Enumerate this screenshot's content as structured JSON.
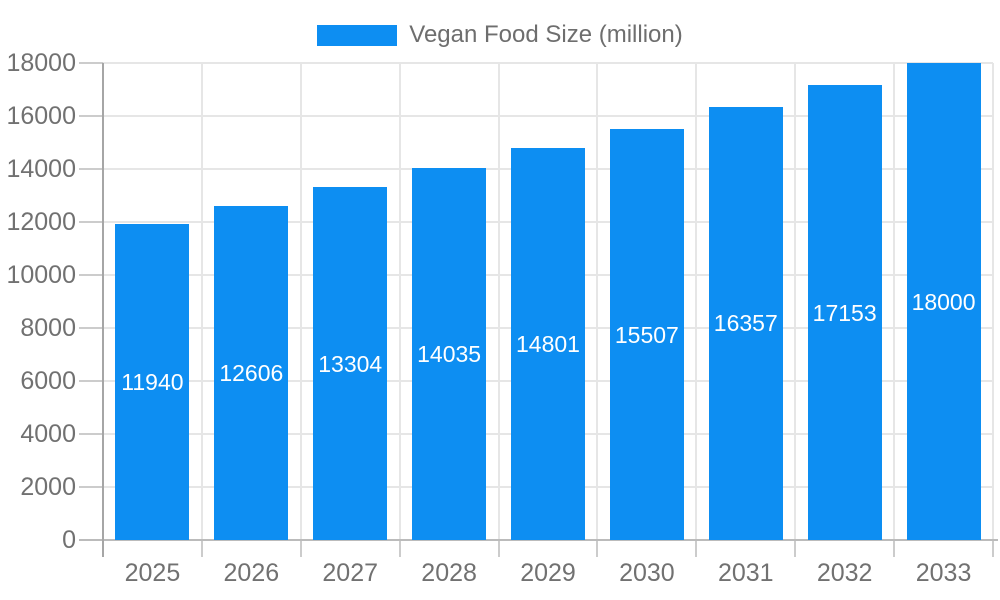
{
  "legend": {
    "label": "Vegan Food Size (million)"
  },
  "colors": {
    "bar": "#0d8ef2",
    "value_label": "#ffffff",
    "axis_text": "#717171",
    "legend_text": "#6e6e6e",
    "grid_line": "#e6e6e6",
    "tick_line": "#cccccc",
    "x_axis_line": "#bbbbbb",
    "y_axis_line": "#a6a6a6",
    "background": "#ffffff"
  },
  "chart_data": {
    "type": "bar",
    "title": "",
    "xlabel": "",
    "ylabel": "",
    "categories": [
      "2025",
      "2026",
      "2027",
      "2028",
      "2029",
      "2030",
      "2031",
      "2032",
      "2033"
    ],
    "series": [
      {
        "name": "Vegan Food Size (million)",
        "values": [
          11940,
          12606,
          13304,
          14035,
          14801,
          15507,
          16357,
          17153,
          18000
        ]
      }
    ],
    "values": [
      11940,
      12606,
      13304,
      14035,
      14801,
      15507,
      16357,
      17153,
      18000
    ],
    "value_labels": [
      "11940",
      "12606",
      "13304",
      "14035",
      "14801",
      "15507",
      "16357",
      "17153",
      "18000"
    ],
    "value_label_position": "inside-center",
    "ylim": [
      0,
      18000
    ],
    "ytick_step": 2000,
    "yticks": [
      0,
      2000,
      4000,
      6000,
      8000,
      10000,
      12000,
      14000,
      16000,
      18000
    ],
    "grid": true,
    "legend_position": "top-center"
  }
}
